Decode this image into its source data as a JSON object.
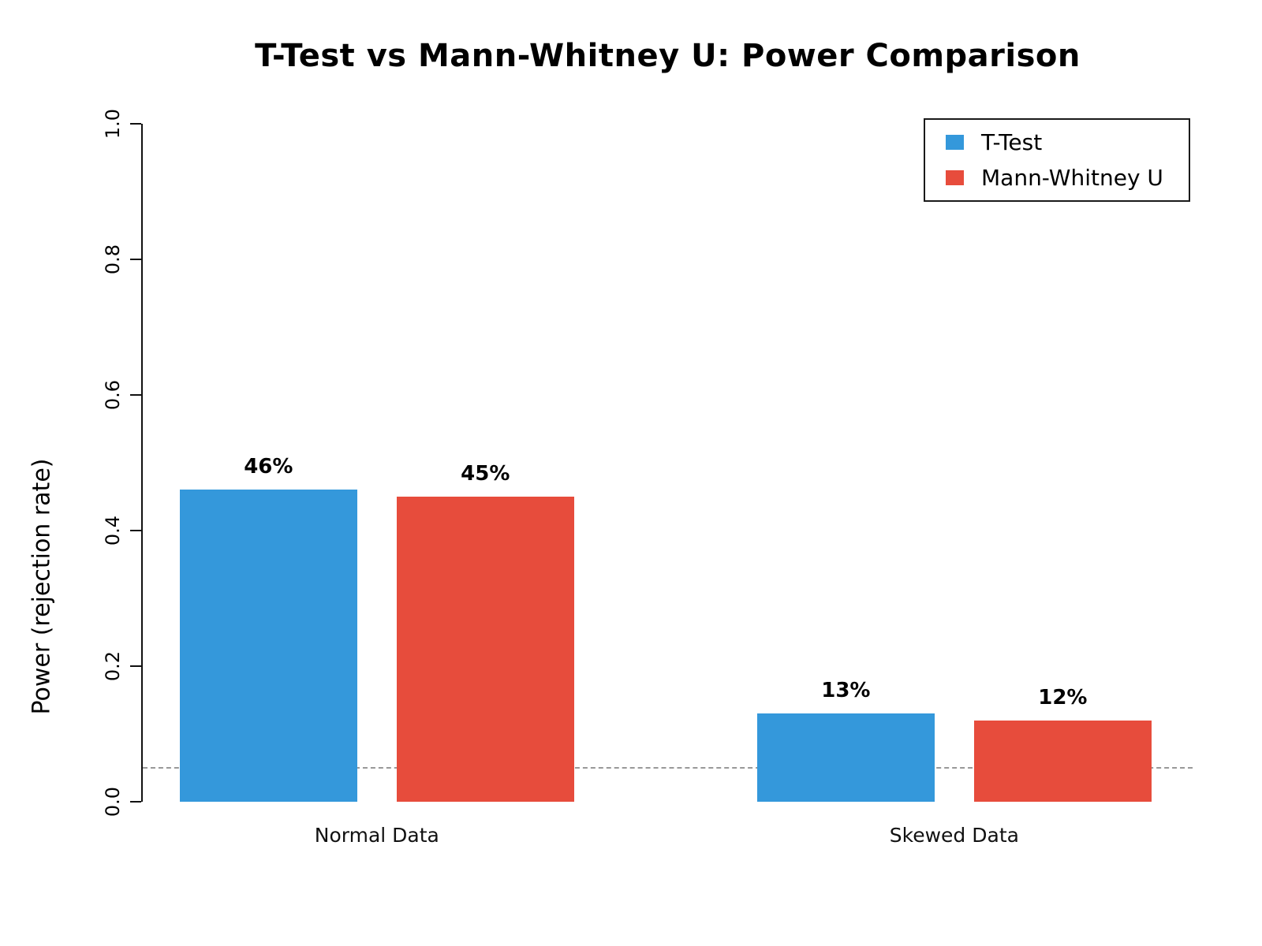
{
  "chart_data": {
    "type": "bar",
    "title": "T-Test vs Mann-Whitney U: Power Comparison",
    "xlabel": "",
    "ylabel": "Power (rejection rate)",
    "categories": [
      "Normal Data",
      "Skewed Data"
    ],
    "series": [
      {
        "name": "T-Test",
        "color": "#3498db",
        "values": [
          0.46,
          0.13
        ],
        "labels": [
          "46%",
          "13%"
        ]
      },
      {
        "name": "Mann-Whitney U",
        "color": "#e74c3c",
        "values": [
          0.45,
          0.12
        ],
        "labels": [
          "45%",
          "12%"
        ]
      }
    ],
    "ylim": [
      0.0,
      1.0
    ],
    "yticks": [
      "0.0",
      "0.2",
      "0.4",
      "0.6",
      "0.8",
      "1.0"
    ],
    "grid": false,
    "legend_position": "upper right",
    "reference_line": {
      "value": 0.05,
      "style": "dashed",
      "color": "#999999"
    }
  }
}
